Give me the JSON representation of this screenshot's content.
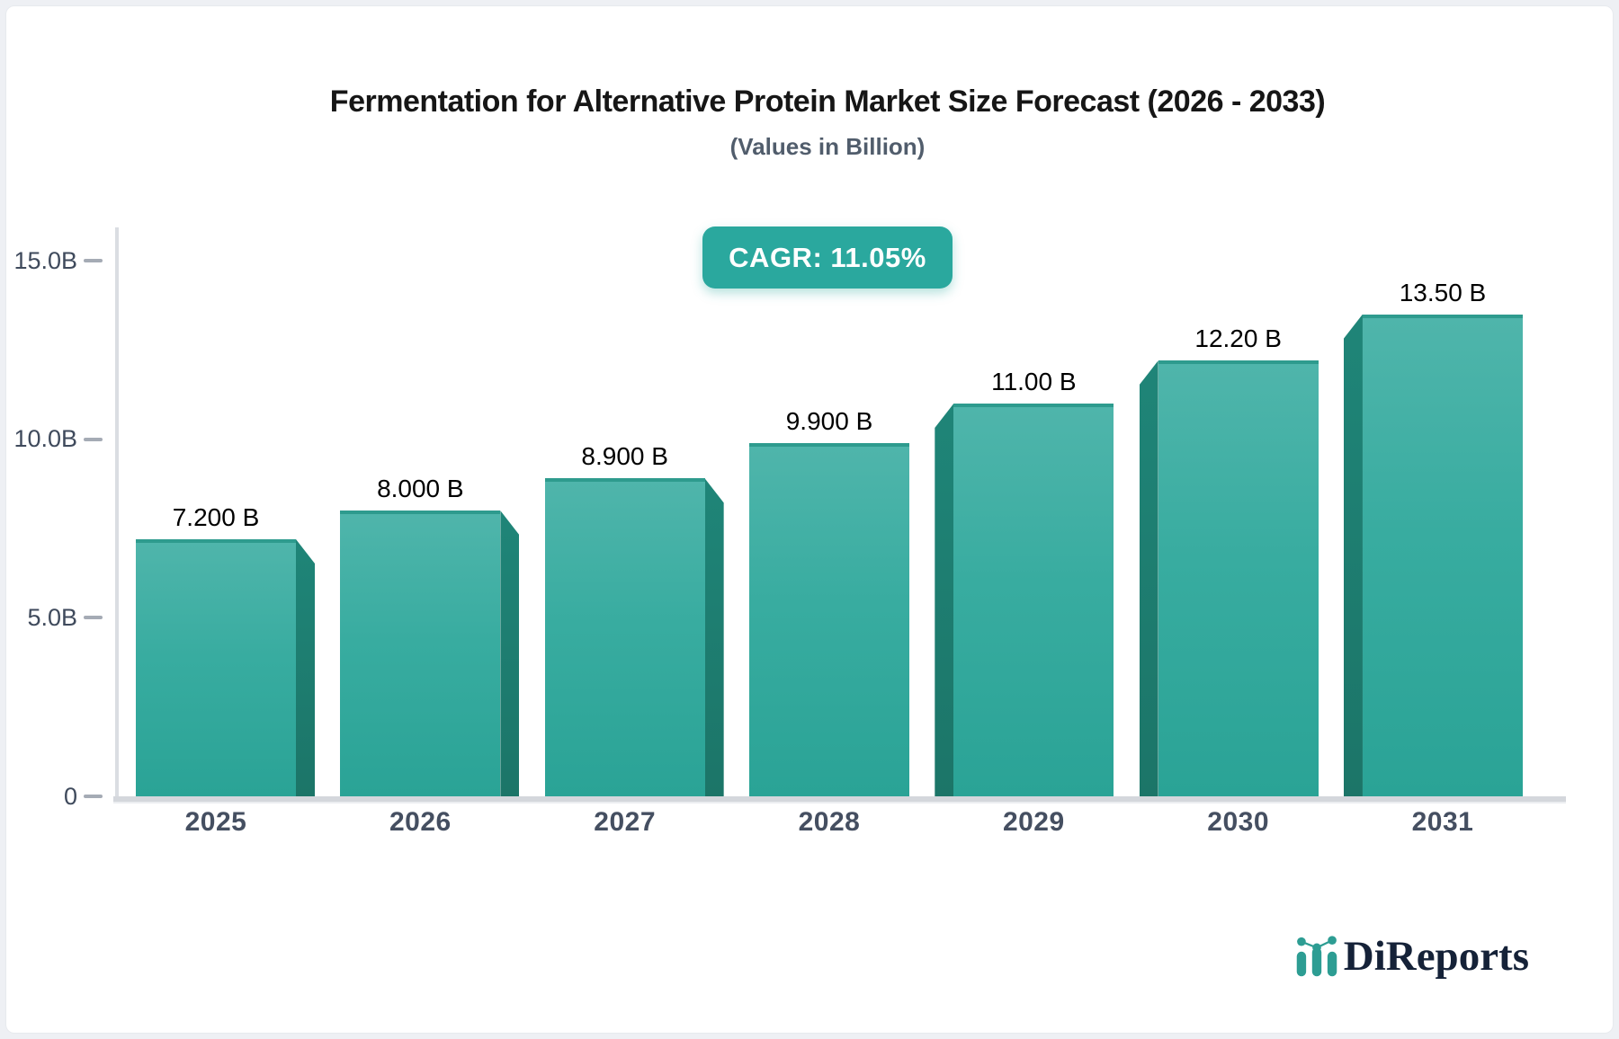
{
  "header": {
    "title": "Fermentation for Alternative Protein Market Size Forecast (2026 - 2033)",
    "subtitle": "(Values in Billion)",
    "cagr_label": "CAGR: 11.05%"
  },
  "brand": {
    "name": "DiReports",
    "icon": "bar-line-chart-icon",
    "icon_color": "#2d9d93",
    "text_color": "#152238"
  },
  "chart_data": {
    "type": "bar",
    "title": "Fermentation for Alternative Protein Market Size Forecast (2026 - 2033)",
    "subtitle": "(Values in Billion)",
    "cagr": "11.05%",
    "categories": [
      "2025",
      "2026",
      "2027",
      "2028",
      "2029",
      "2030",
      "2031"
    ],
    "values": [
      7.2,
      8.0,
      8.9,
      9.9,
      11.0,
      12.2,
      13.5
    ],
    "value_labels": [
      "7.200 B",
      "8.000 B",
      "8.900 B",
      "9.900 B",
      "11.00 B",
      "12.20 B",
      "13.50 B"
    ],
    "unit": "Billion",
    "xlabel": "",
    "ylabel": "",
    "ylim": [
      0,
      15.9
    ],
    "y_ticks": [
      {
        "label": "15.0B",
        "value": 15
      },
      {
        "label": "10.0B",
        "value": 10
      },
      {
        "label": "5.0B",
        "value": 5
      },
      {
        "label": "0",
        "value": 0
      }
    ],
    "grid": false,
    "legend": "none",
    "bar_color_top": "#4FB5AB",
    "bar_color_bottom": "#2AA396",
    "bar_side_color": "#1F8578",
    "accent_color": "#2AA89E"
  }
}
